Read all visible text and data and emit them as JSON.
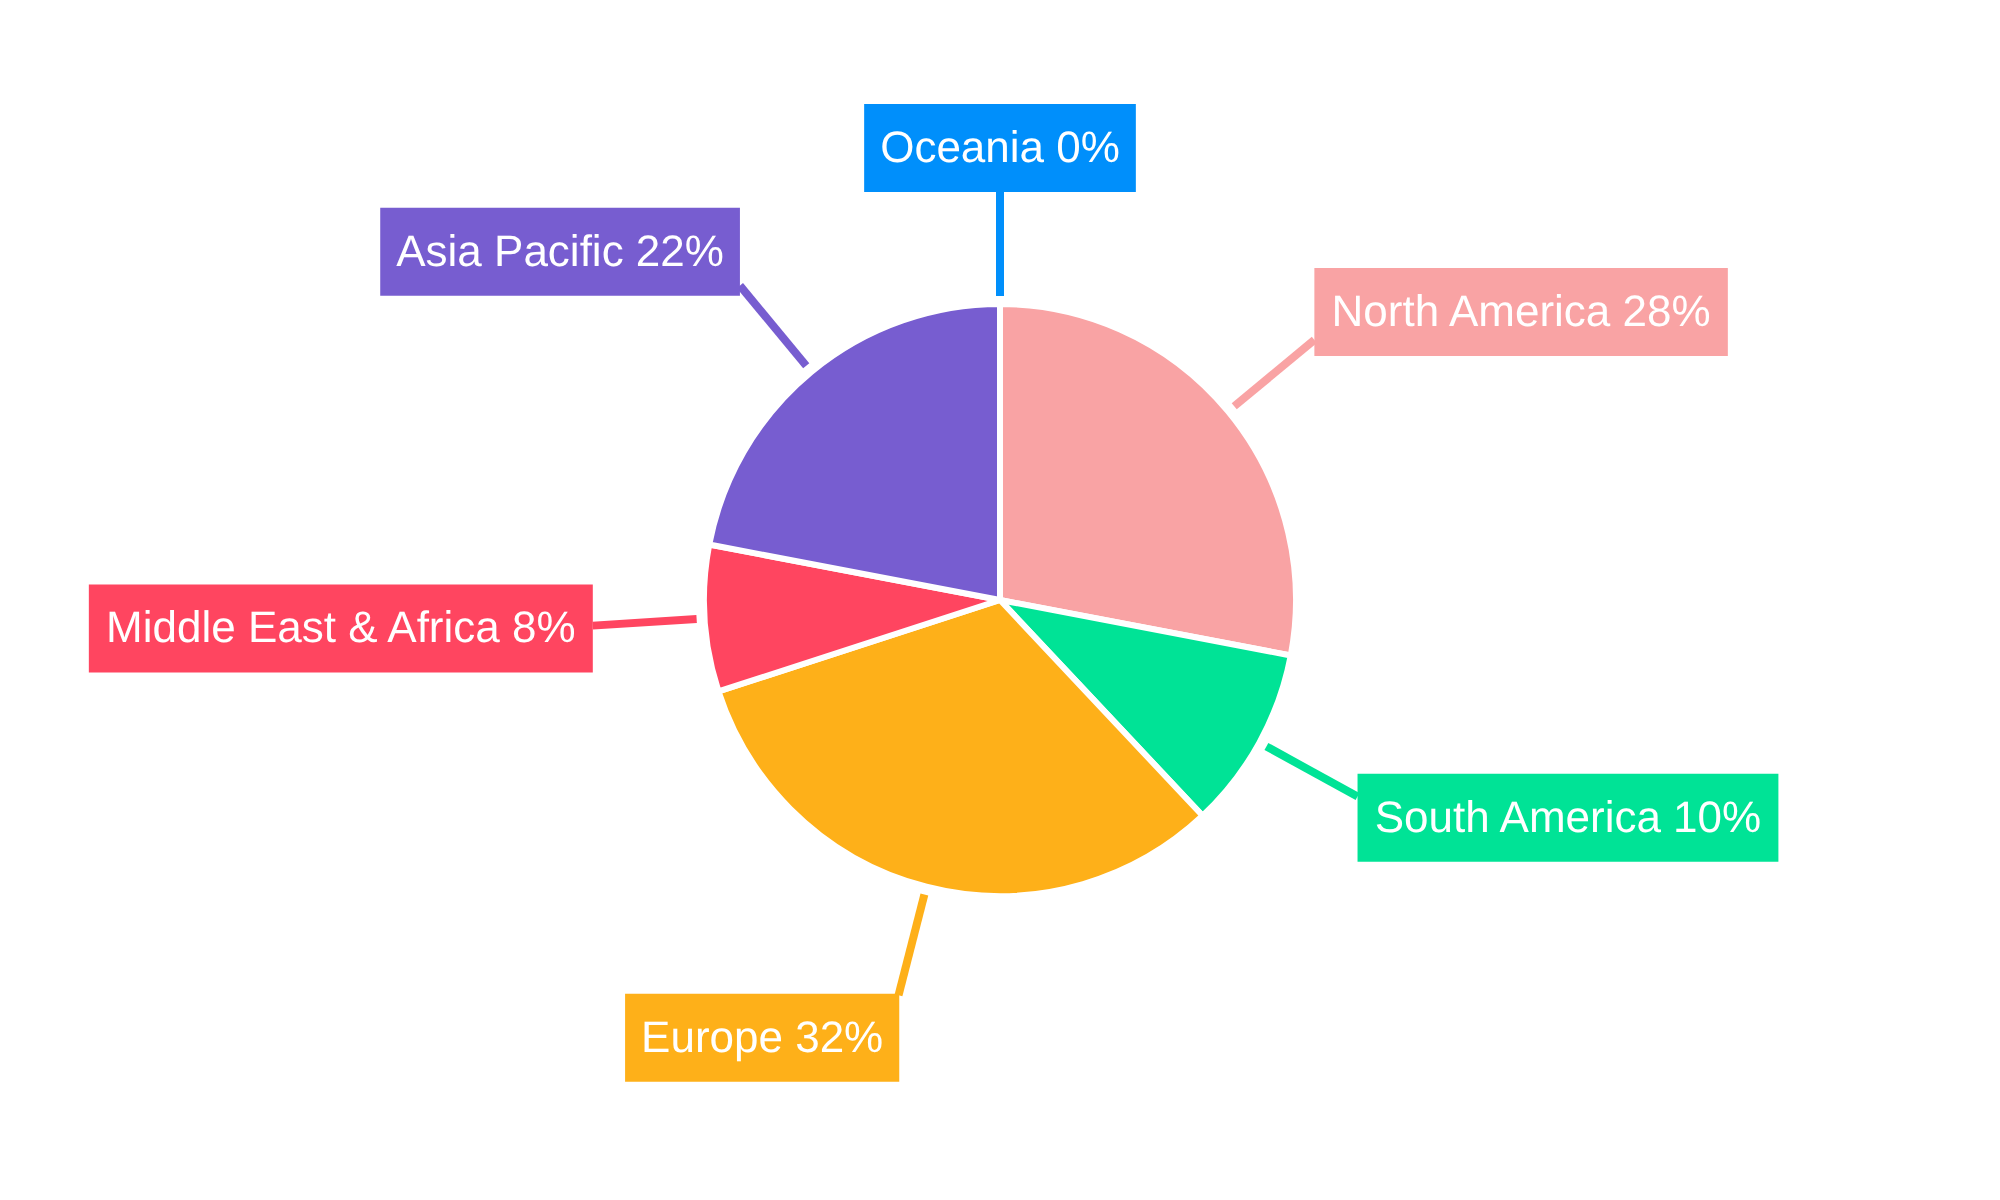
{
  "chart_data": {
    "type": "pie",
    "categories": [
      "North America",
      "South America",
      "Europe",
      "Middle East & Africa",
      "Asia Pacific",
      "Oceania"
    ],
    "values": [
      28,
      10,
      32,
      8,
      22,
      0
    ],
    "value_labels": [
      "28%",
      "10%",
      "32%",
      "8%",
      "22%",
      "0%"
    ],
    "colors": [
      "#f9a3a4",
      "#00e396",
      "#feb019",
      "#ff4560",
      "#775dd0",
      "#008ffb"
    ]
  }
}
